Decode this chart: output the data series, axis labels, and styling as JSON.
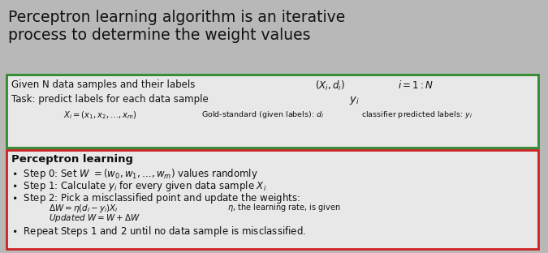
{
  "title_line1": "Perceptron learning algorithm is an iterative",
  "title_line2": "process to determine the weight values",
  "bg_color": "#b8b8b8",
  "box_bg": "#e8e8e8",
  "box1_border": "#2d8a2d",
  "box2_border": "#cc2222",
  "text_color": "#111111",
  "title_fontsize": 13.5,
  "body_fontsize": 8.5,
  "small_fontsize": 7.0
}
